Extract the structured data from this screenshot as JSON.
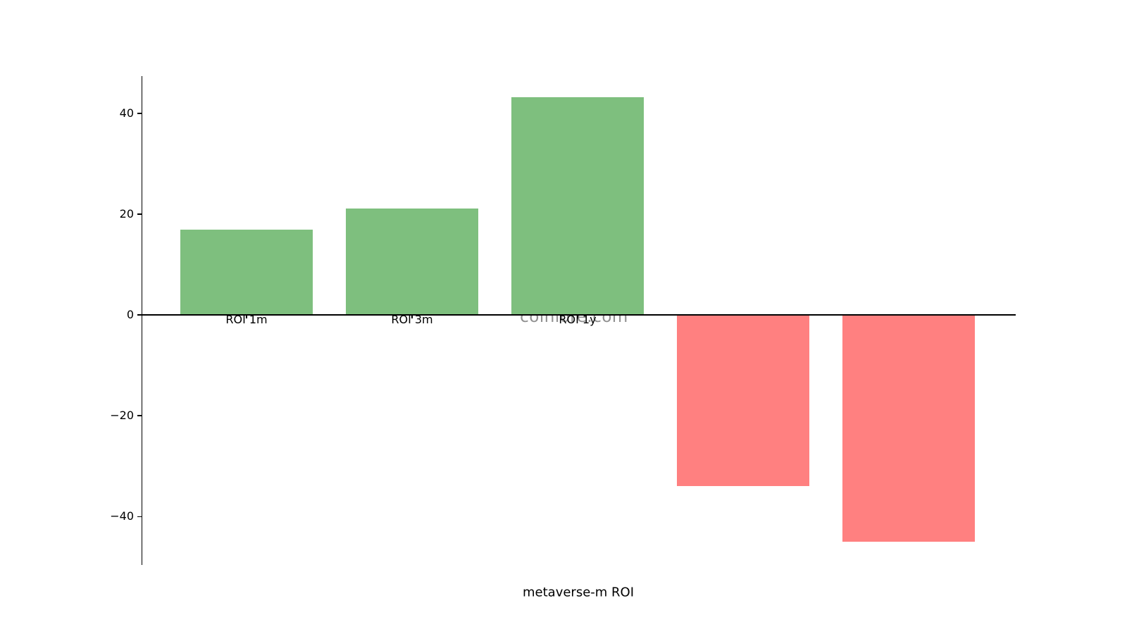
{
  "page": {
    "background": "#ffffff"
  },
  "watermark": {
    "text": "coinlore.com",
    "color": "#8f8f8f"
  },
  "title": {
    "text": "metaverse-m ROI",
    "color": "#000000"
  },
  "chart_data": {
    "type": "bar",
    "title": "metaverse-m ROI",
    "title_position": "bottom",
    "categories": [
      "ROI 1m",
      "ROI 3m",
      "ROI 1y",
      "",
      ""
    ],
    "values": [
      16.9,
      21.1,
      43.2,
      -33.9,
      -45.0
    ],
    "bar_colors": [
      "#7ebf7e",
      "#7ebf7e",
      "#7ebf7e",
      "#ff8080",
      "#ff8080"
    ],
    "positive_color": "#7ebf7e",
    "negative_color": "#ff8080",
    "axis_color": "#000000",
    "xlabel": "",
    "ylabel": "",
    "ylim": [
      -49.6,
      47.4
    ],
    "yticks": {
      "values": [
        40,
        20,
        0,
        -20,
        -40
      ],
      "labels": [
        "40",
        "20",
        "0",
        "−20",
        "−40"
      ]
    },
    "grid": false,
    "legend": null
  }
}
